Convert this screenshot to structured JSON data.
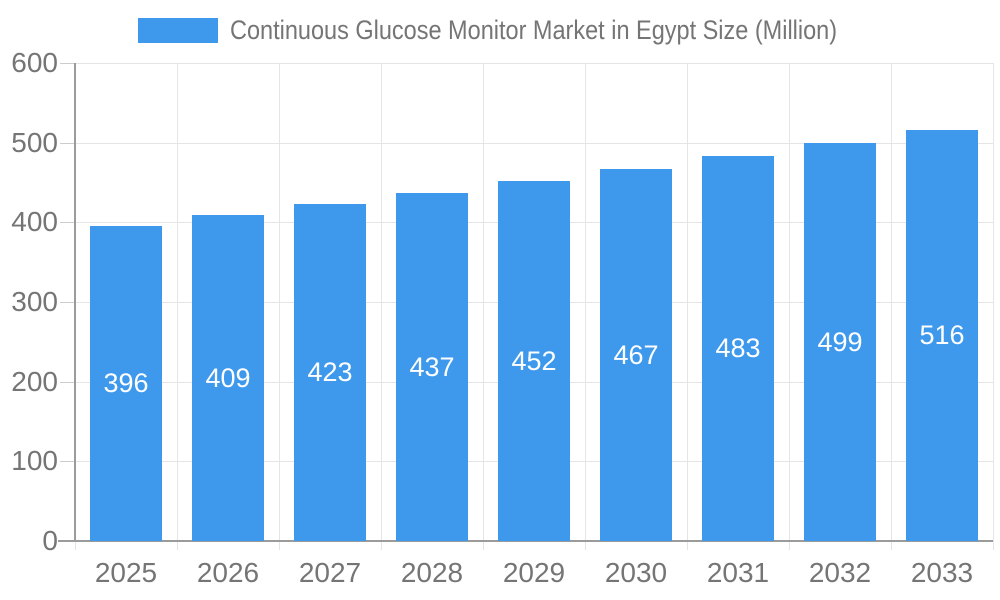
{
  "chart_data": {
    "type": "bar",
    "title": "Continuous Glucose Monitor Market in Egypt Size (Million)",
    "categories": [
      "2025",
      "2026",
      "2027",
      "2028",
      "2029",
      "2030",
      "2031",
      "2032",
      "2033"
    ],
    "values": [
      396,
      409,
      423,
      437,
      452,
      467,
      483,
      499,
      516
    ],
    "xlabel": "",
    "ylabel": "",
    "ylim": [
      0,
      600
    ],
    "yticks": [
      0,
      100,
      200,
      300,
      400,
      500,
      600
    ],
    "grid": true,
    "legend_position": "top",
    "bar_color": "#3e99ed",
    "bar_label_color": "#ffffff",
    "axis_text_color": "#757575",
    "gridline_color": "#e5e5e5",
    "tick_color": "#cccccc",
    "axis_line_color": "#9b9b9b"
  }
}
